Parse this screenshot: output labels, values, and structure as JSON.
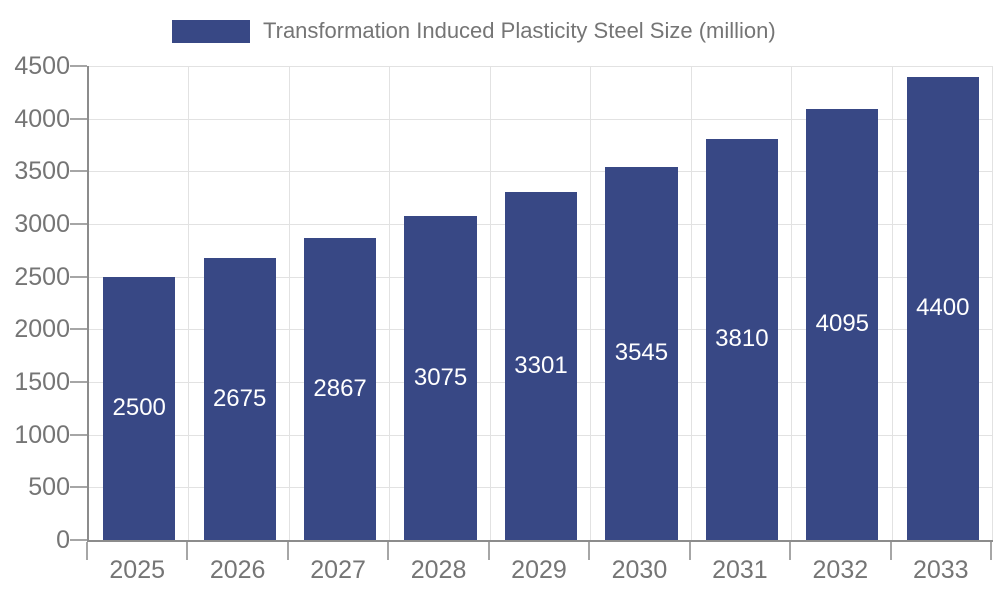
{
  "chart_data": {
    "type": "bar",
    "title": "Transformation Induced Plasticity Steel Size (million)",
    "legend": [
      "Transformation Induced Plasticity Steel Size (million)"
    ],
    "legend_position": "top",
    "categories": [
      "2025",
      "2026",
      "2027",
      "2028",
      "2029",
      "2030",
      "2031",
      "2032",
      "2033"
    ],
    "values": [
      2500,
      2675,
      2867,
      3075,
      3301,
      3545,
      3810,
      4095,
      4400
    ],
    "xlabel": "",
    "ylabel": "",
    "ylim": [
      0,
      4500
    ],
    "ytick_step": 500,
    "yticks": [
      0,
      500,
      1000,
      1500,
      2000,
      2500,
      3000,
      3500,
      4000,
      4500
    ],
    "grid": true,
    "bar_labels_visible": true,
    "colors": {
      "bar": "#384885",
      "bar_label": "#ffffff",
      "axis_text": "#757575",
      "axis_line": "#8c8c8c",
      "tick_line": "#a6a6a6",
      "grid_line": "#e2e2e2",
      "background": "#ffffff"
    }
  }
}
